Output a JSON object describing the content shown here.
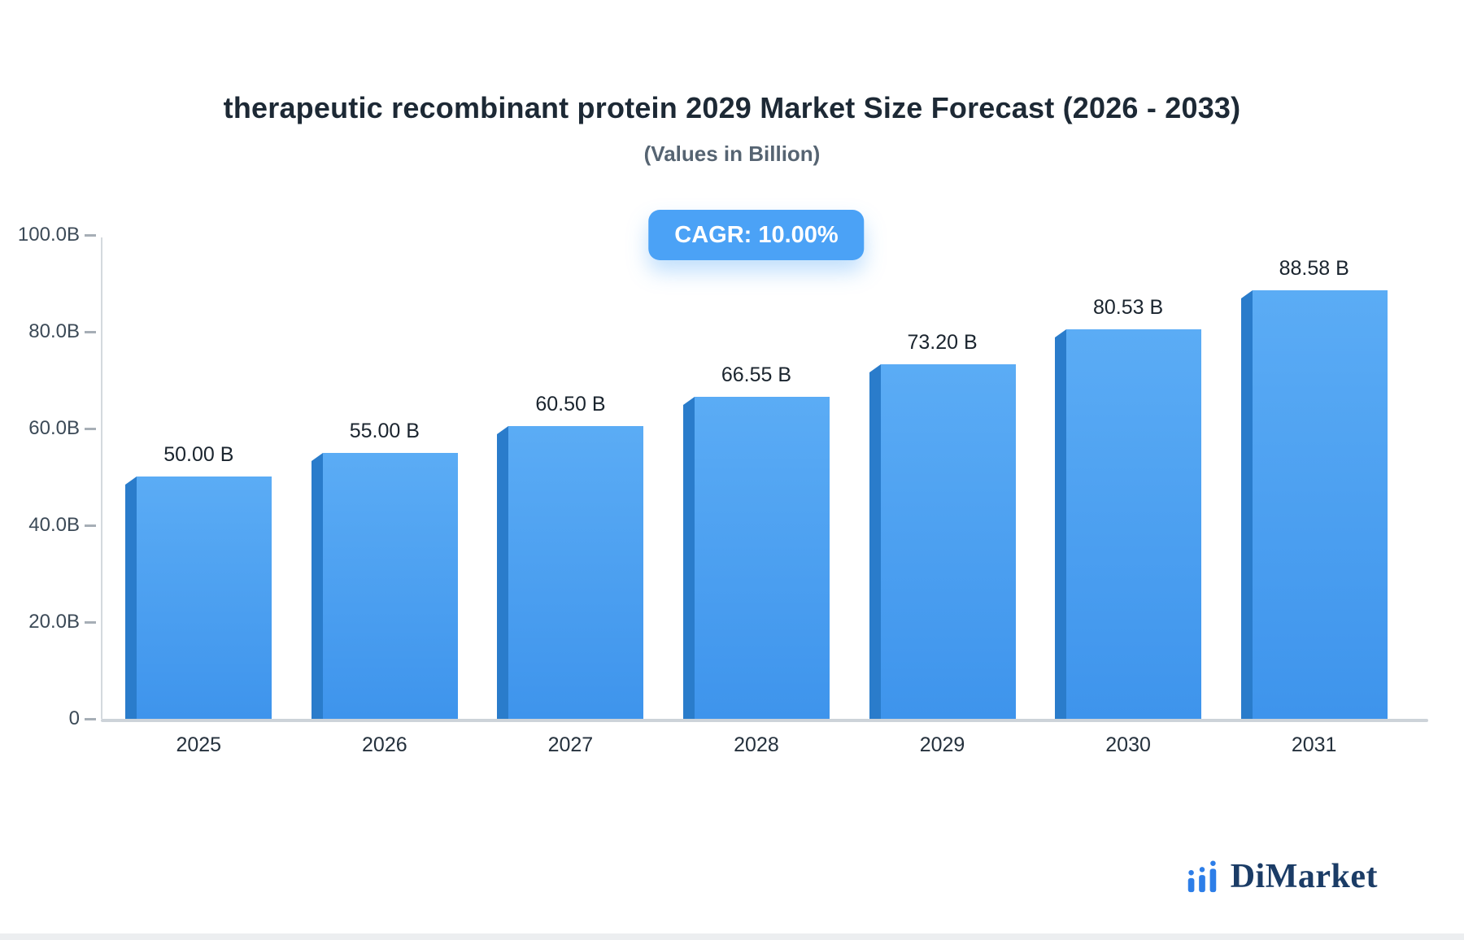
{
  "header": {
    "title": "therapeutic recombinant protein 2029 Market Size Forecast (2026 - 2033)",
    "subtitle": "(Values in Billion)"
  },
  "cagr_badge": "CAGR: 10.00%",
  "chart_data": {
    "type": "bar",
    "title": "therapeutic recombinant protein 2029 Market Size Forecast (2026 - 2033)",
    "subtitle": "(Values in Billion)",
    "categories": [
      "2025",
      "2026",
      "2027",
      "2028",
      "2029",
      "2030",
      "2031"
    ],
    "values": [
      50.0,
      55.0,
      60.5,
      66.55,
      73.2,
      80.53,
      88.58
    ],
    "value_labels": [
      "50.00 B",
      "55.00 B",
      "60.50 B",
      "66.55 B",
      "73.20 B",
      "80.53 B",
      "88.58 B"
    ],
    "ylim": [
      0,
      100
    ],
    "y_ticks": [
      100,
      80,
      60,
      40,
      20,
      0
    ],
    "y_tick_labels": [
      "100.0B",
      "80.0B",
      "60.0B",
      "40.0B",
      "20.0B",
      "0"
    ],
    "xlabel": "",
    "ylabel": "",
    "grid": false,
    "legend": "none",
    "bar_color": "#3E94EC",
    "bar_side_color": "#2A7CCB",
    "annotation": "CAGR: 10.00%"
  },
  "brand": {
    "name": "DiMarket"
  },
  "colors": {
    "badge_bg": "#4BA2F6",
    "badge_text": "#ffffff",
    "title_text": "#1d2935",
    "axis_line": "#cdd3d9",
    "logo_blue": "#2D7EE8",
    "logo_text": "#1b3c66"
  }
}
